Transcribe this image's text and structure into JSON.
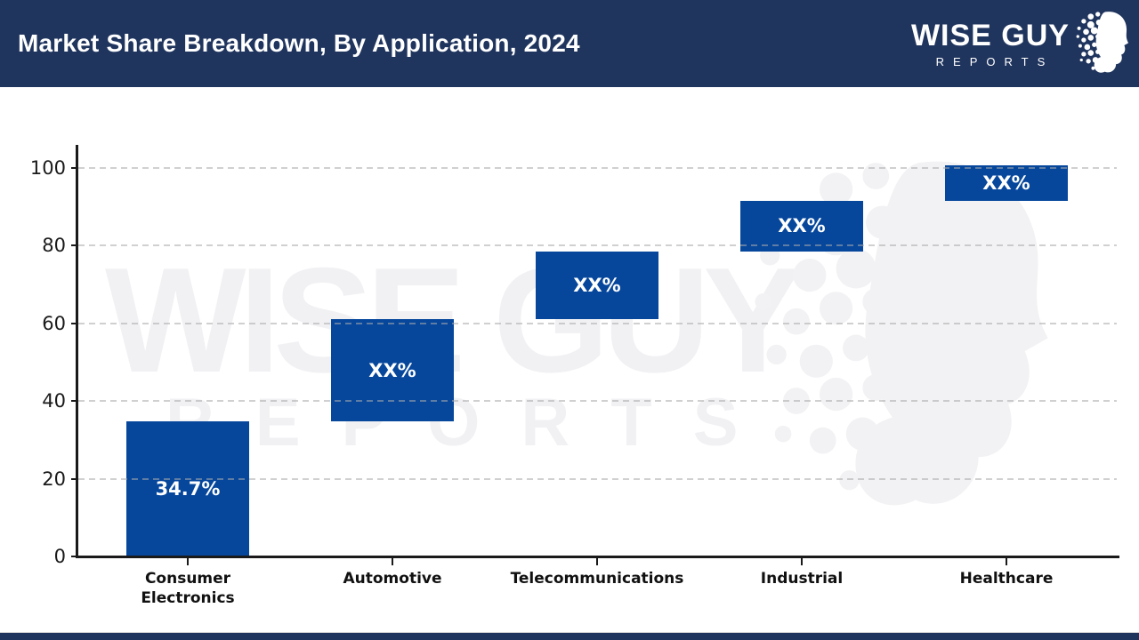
{
  "header": {
    "title": "Market Share Breakdown, By Application, 2024",
    "logo": {
      "name": "WISE GUY",
      "tagline": "REPORTS"
    }
  },
  "watermark": {
    "line1": "WISE GUY",
    "line2": "REPORTS"
  },
  "colors": {
    "header_bg": "#20355e",
    "footer_bg": "#20355e",
    "bar": "#06479c",
    "bar_label": "#ffffff",
    "title_text": "#ffffff",
    "axis": "#1a1a1a",
    "gridline": "rgba(170,170,170,0.55)",
    "watermark": "#f1f1f4"
  },
  "chart_data": {
    "type": "bar",
    "subtype": "waterfall-stacked-percentage",
    "title": "Market Share Breakdown, By Application, 2024",
    "categories": [
      "Consumer\nElectronics",
      "Automotive",
      "Telecommunications",
      "Industrial",
      "Healthcare"
    ],
    "segments": [
      {
        "category": "Consumer\nElectronics",
        "start": 0,
        "end": 34.7,
        "label": "34.7%"
      },
      {
        "category": "Automotive",
        "start": 34.7,
        "end": 61,
        "label": "XX%"
      },
      {
        "category": "Telecommunications",
        "start": 61,
        "end": 78.5,
        "label": "XX%"
      },
      {
        "category": "Industrial",
        "start": 78.5,
        "end": 91.5,
        "label": "XX%"
      },
      {
        "category": "Healthcare",
        "start": 91.5,
        "end": 100.5,
        "label": "XX%"
      }
    ],
    "y_ticks": [
      0,
      20,
      40,
      60,
      80,
      100
    ],
    "ylim": [
      0,
      106
    ],
    "xlabel": "",
    "ylabel": "",
    "grid": "horizontal-dashed, drawn over bars",
    "legend": "none"
  }
}
